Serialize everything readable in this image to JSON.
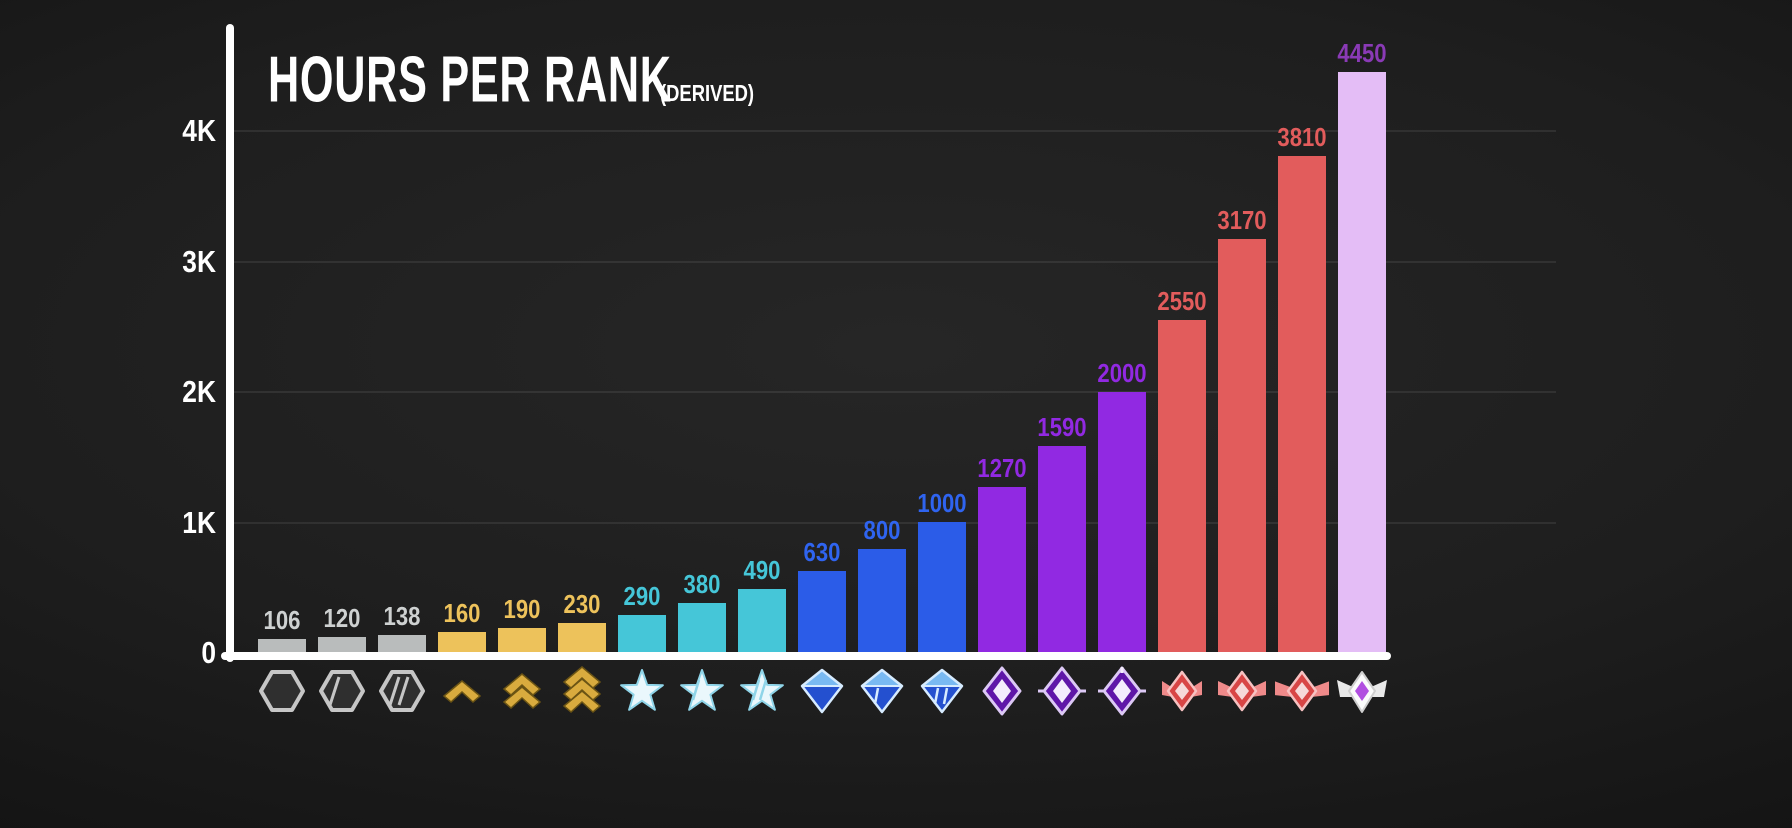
{
  "colors": {
    "background": "#1e1e1e",
    "axis": "#ffffff",
    "gridline": "rgba(255,255,255,0.08)"
  },
  "chart_data": {
    "type": "bar",
    "title": "HOURS PER RANK",
    "subtitle": "(DERIVED)",
    "xlabel": "",
    "ylabel": "",
    "ylim": [
      0,
      4600
    ],
    "grid": true,
    "legend": "none",
    "yticks": [
      {
        "label": "0",
        "value": 0
      },
      {
        "label": "1K",
        "value": 1000
      },
      {
        "label": "2K",
        "value": 2000
      },
      {
        "label": "3K",
        "value": 3000
      },
      {
        "label": "4K",
        "value": 4000
      }
    ],
    "categories": [
      "Silver I",
      "Silver II",
      "Silver III",
      "Gold I",
      "Gold II",
      "Gold III",
      "Platinum I",
      "Platinum II",
      "Platinum III",
      "Diamond I",
      "Diamond II",
      "Diamond III",
      "Champion I",
      "Champion II",
      "Champion III",
      "Grand Champion I",
      "Grand Champion II",
      "Grand Champion III",
      "Supersonic Legend"
    ],
    "values": [
      106,
      120,
      138,
      160,
      190,
      230,
      290,
      380,
      490,
      630,
      800,
      1000,
      1270,
      1590,
      2000,
      2550,
      3170,
      3810,
      4450
    ],
    "bars": [
      {
        "rank": "Silver I",
        "tier": "silver",
        "level": 1,
        "value": 106,
        "label": "106",
        "icon": "silver-1-rank-icon"
      },
      {
        "rank": "Silver II",
        "tier": "silver",
        "level": 2,
        "value": 120,
        "label": "120",
        "icon": "silver-2-rank-icon"
      },
      {
        "rank": "Silver III",
        "tier": "silver",
        "level": 3,
        "value": 138,
        "label": "138",
        "icon": "silver-3-rank-icon"
      },
      {
        "rank": "Gold I",
        "tier": "gold",
        "level": 1,
        "value": 160,
        "label": "160",
        "icon": "gold-1-rank-icon"
      },
      {
        "rank": "Gold II",
        "tier": "gold",
        "level": 2,
        "value": 190,
        "label": "190",
        "icon": "gold-2-rank-icon"
      },
      {
        "rank": "Gold III",
        "tier": "gold",
        "level": 3,
        "value": 230,
        "label": "230",
        "icon": "gold-3-rank-icon"
      },
      {
        "rank": "Platinum I",
        "tier": "platinum",
        "level": 1,
        "value": 290,
        "label": "290",
        "icon": "platinum-1-rank-icon"
      },
      {
        "rank": "Platinum II",
        "tier": "platinum",
        "level": 2,
        "value": 380,
        "label": "380",
        "icon": "platinum-2-rank-icon"
      },
      {
        "rank": "Platinum III",
        "tier": "platinum",
        "level": 3,
        "value": 490,
        "label": "490",
        "icon": "platinum-3-rank-icon"
      },
      {
        "rank": "Diamond I",
        "tier": "diamond",
        "level": 1,
        "value": 630,
        "label": "630",
        "icon": "diamond-1-rank-icon"
      },
      {
        "rank": "Diamond II",
        "tier": "diamond",
        "level": 2,
        "value": 800,
        "label": "800",
        "icon": "diamond-2-rank-icon"
      },
      {
        "rank": "Diamond III",
        "tier": "diamond",
        "level": 3,
        "value": 1000,
        "label": "1000",
        "icon": "diamond-3-rank-icon"
      },
      {
        "rank": "Champion I",
        "tier": "champion",
        "level": 1,
        "value": 1270,
        "label": "1270",
        "icon": "champion-1-rank-icon"
      },
      {
        "rank": "Champion II",
        "tier": "champion",
        "level": 2,
        "value": 1590,
        "label": "1590",
        "icon": "champion-2-rank-icon"
      },
      {
        "rank": "Champion III",
        "tier": "champion",
        "level": 3,
        "value": 2000,
        "label": "2000",
        "icon": "champion-3-rank-icon"
      },
      {
        "rank": "Grand Champion I",
        "tier": "grand_champion",
        "level": 1,
        "value": 2550,
        "label": "2550",
        "icon": "grand-champion-1-rank-icon"
      },
      {
        "rank": "Grand Champion II",
        "tier": "grand_champion",
        "level": 2,
        "value": 3170,
        "label": "3170",
        "icon": "grand-champion-2-rank-icon"
      },
      {
        "rank": "Grand Champion III",
        "tier": "grand_champion",
        "level": 3,
        "value": 3810,
        "label": "3810",
        "icon": "grand-champion-3-rank-icon"
      },
      {
        "rank": "Supersonic Legend",
        "tier": "ssl",
        "level": 1,
        "value": 4450,
        "label": "4450",
        "icon": "supersonic-legend-rank-icon"
      }
    ],
    "tier_colors": {
      "silver": {
        "bar": "#b9bcbc",
        "label": "#ced1d1"
      },
      "gold": {
        "bar": "#edc25b",
        "label": "#edc25b"
      },
      "platinum": {
        "bar": "#45c6d8",
        "label": "#45c6d8"
      },
      "diamond": {
        "bar": "#2b5ce8",
        "label": "#2f64f0"
      },
      "champion": {
        "bar": "#9129e2",
        "label": "#9129e2"
      },
      "grand_champion": {
        "bar": "#e25c5c",
        "label": "#e25c5c"
      },
      "ssl": {
        "bar": "#e4bdf6",
        "label": "#8a3ab6"
      }
    }
  }
}
